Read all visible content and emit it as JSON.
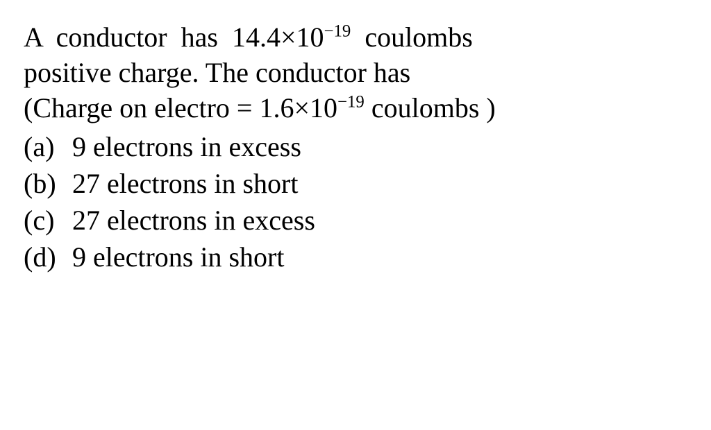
{
  "colors": {
    "background": "#ffffff",
    "text": "#000000"
  },
  "typography": {
    "font_family": "Times New Roman",
    "base_fontsize_pt": 30,
    "sup_fontsize_ratio": 0.62,
    "line_height": 1.28
  },
  "question": {
    "line1_parts": {
      "pre": "A  conductor  has  ",
      "mantissa": "14.4",
      "times": "×",
      "base": "10",
      "exponent": "−19",
      "post_unit": " coulombs"
    },
    "line2": "positive charge. The conductor has",
    "line3_parts": {
      "pre": "(Charge on electro = ",
      "mantissa": "1.6",
      "times": "×",
      "base": "10",
      "exponent": "−19",
      "post_unit": " coulombs )"
    }
  },
  "options": [
    {
      "label": "(a)",
      "text": "9 electrons in excess"
    },
    {
      "label": "(b)",
      "text": "27 electrons in short"
    },
    {
      "label": "(c)",
      "text": "27 electrons in excess"
    },
    {
      "label": "(d)",
      "text": "9 electrons in short"
    }
  ]
}
